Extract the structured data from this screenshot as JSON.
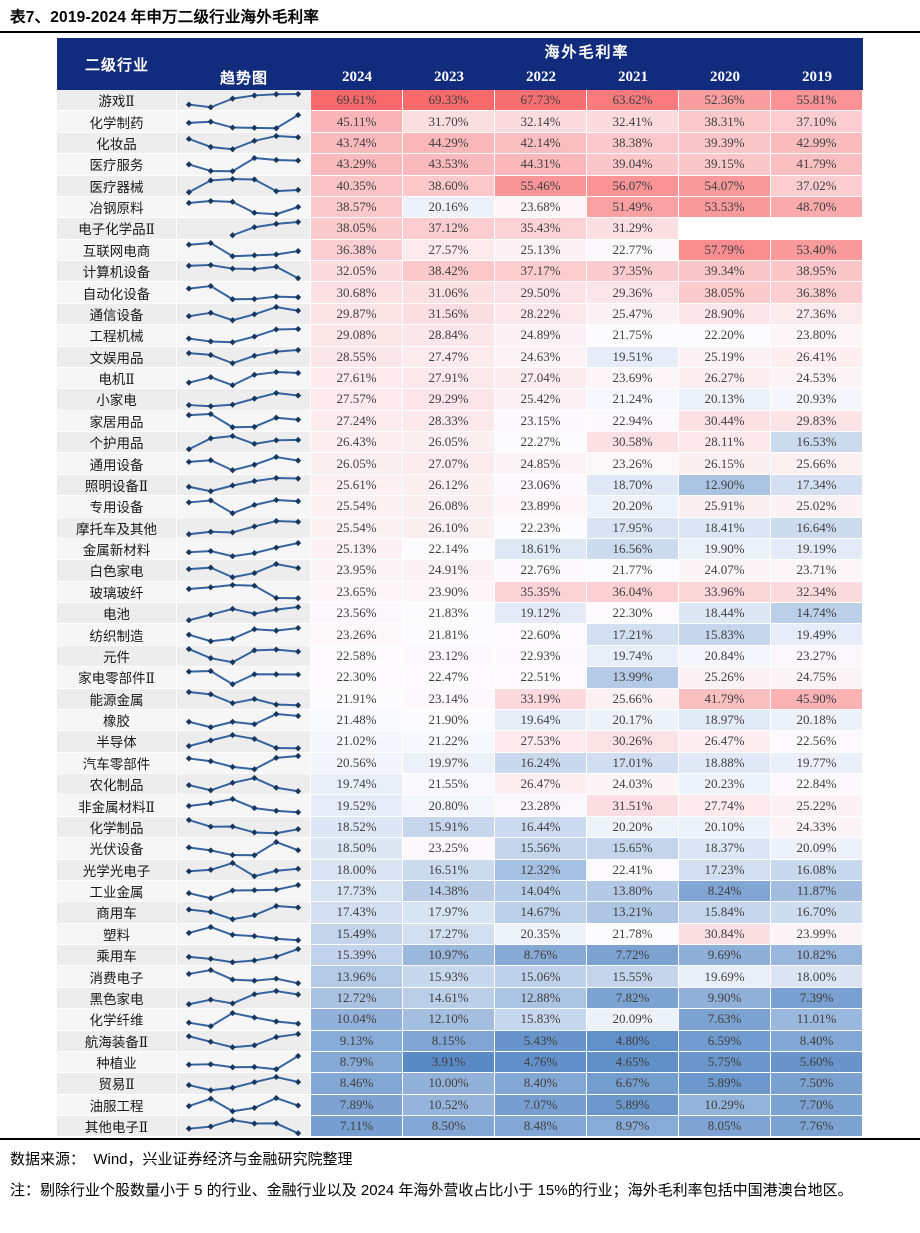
{
  "title": "表7、2019-2024 年申万二级行业海外毛利率",
  "table": {
    "col1_header": "二级行业",
    "col2_header": "趋势图",
    "group_header": "海外毛利率",
    "years": [
      "2024",
      "2023",
      "2022",
      "2021",
      "2020",
      "2019"
    ],
    "value_format": "percent_2dp",
    "rows": [
      {
        "name": "游戏Ⅱ",
        "values": [
          69.61,
          69.33,
          67.73,
          63.62,
          52.36,
          55.81
        ]
      },
      {
        "name": "化学制药",
        "values": [
          45.11,
          31.7,
          32.14,
          32.41,
          38.31,
          37.1
        ]
      },
      {
        "name": "化妆品",
        "values": [
          43.74,
          44.29,
          42.14,
          38.38,
          39.39,
          42.99
        ]
      },
      {
        "name": "医疗服务",
        "values": [
          43.29,
          43.53,
          44.31,
          39.04,
          39.15,
          41.79
        ]
      },
      {
        "name": "医疗器械",
        "values": [
          40.35,
          38.6,
          55.46,
          56.07,
          54.07,
          37.02
        ]
      },
      {
        "name": "冶钢原料",
        "values": [
          38.57,
          20.16,
          23.68,
          51.49,
          53.53,
          48.7
        ]
      },
      {
        "name": "电子化学品Ⅱ",
        "values": [
          38.05,
          37.12,
          35.43,
          31.29,
          null,
          null
        ]
      },
      {
        "name": "互联网电商",
        "values": [
          36.38,
          27.57,
          25.13,
          22.77,
          57.79,
          53.4
        ]
      },
      {
        "name": "计算机设备",
        "values": [
          32.05,
          38.42,
          37.17,
          37.35,
          39.34,
          38.95
        ]
      },
      {
        "name": "自动化设备",
        "values": [
          30.68,
          31.06,
          29.5,
          29.36,
          38.05,
          36.38
        ]
      },
      {
        "name": "通信设备",
        "values": [
          29.87,
          31.56,
          28.22,
          25.47,
          28.9,
          27.36
        ]
      },
      {
        "name": "工程机械",
        "values": [
          29.08,
          28.84,
          24.89,
          21.75,
          22.2,
          23.8
        ]
      },
      {
        "name": "文娱用品",
        "values": [
          28.55,
          27.47,
          24.63,
          19.51,
          25.19,
          26.41
        ]
      },
      {
        "name": "电机Ⅱ",
        "values": [
          27.61,
          27.91,
          27.04,
          23.69,
          26.27,
          24.53
        ]
      },
      {
        "name": "小家电",
        "values": [
          27.57,
          29.29,
          25.42,
          21.24,
          20.13,
          20.93
        ]
      },
      {
        "name": "家居用品",
        "values": [
          27.24,
          28.33,
          23.15,
          22.94,
          30.44,
          29.83
        ]
      },
      {
        "name": "个护用品",
        "values": [
          26.43,
          26.05,
          22.27,
          30.58,
          28.11,
          16.53
        ]
      },
      {
        "name": "通用设备",
        "values": [
          26.05,
          27.07,
          24.85,
          23.26,
          26.15,
          25.66
        ]
      },
      {
        "name": "照明设备Ⅱ",
        "values": [
          25.61,
          26.12,
          23.06,
          18.7,
          12.9,
          17.34
        ]
      },
      {
        "name": "专用设备",
        "values": [
          25.54,
          26.08,
          23.89,
          20.2,
          25.91,
          25.02
        ]
      },
      {
        "name": "摩托车及其他",
        "values": [
          25.54,
          26.1,
          22.23,
          17.95,
          18.41,
          16.64
        ]
      },
      {
        "name": "金属新材料",
        "values": [
          25.13,
          22.14,
          18.61,
          16.56,
          19.9,
          19.19
        ]
      },
      {
        "name": "白色家电",
        "values": [
          23.95,
          24.91,
          22.76,
          21.77,
          24.07,
          23.71
        ]
      },
      {
        "name": "玻璃玻纤",
        "values": [
          23.65,
          23.9,
          35.35,
          36.04,
          33.96,
          32.34
        ]
      },
      {
        "name": "电池",
        "values": [
          23.56,
          21.83,
          19.12,
          22.3,
          18.44,
          14.74
        ]
      },
      {
        "name": "纺织制造",
        "values": [
          23.26,
          21.81,
          22.6,
          17.21,
          15.83,
          19.49
        ]
      },
      {
        "name": "元件",
        "values": [
          22.58,
          23.12,
          22.93,
          19.74,
          20.84,
          23.27
        ]
      },
      {
        "name": "家电零部件Ⅱ",
        "values": [
          22.3,
          22.47,
          22.51,
          13.99,
          25.26,
          24.75
        ]
      },
      {
        "name": "能源金属",
        "values": [
          21.91,
          23.14,
          33.19,
          25.66,
          41.79,
          45.9
        ]
      },
      {
        "name": "橡胶",
        "values": [
          21.48,
          21.9,
          19.64,
          20.17,
          18.97,
          20.18
        ]
      },
      {
        "name": "半导体",
        "values": [
          21.02,
          21.22,
          27.53,
          30.26,
          26.47,
          22.56
        ]
      },
      {
        "name": "汽车零部件",
        "values": [
          20.56,
          19.97,
          16.24,
          17.01,
          18.88,
          19.77
        ]
      },
      {
        "name": "农化制品",
        "values": [
          19.74,
          21.55,
          26.47,
          24.03,
          20.23,
          22.84
        ]
      },
      {
        "name": "非金属材料Ⅱ",
        "values": [
          19.52,
          20.8,
          23.28,
          31.51,
          27.74,
          25.22
        ]
      },
      {
        "name": "化学制品",
        "values": [
          18.52,
          15.91,
          16.44,
          20.2,
          20.1,
          24.33
        ]
      },
      {
        "name": "光伏设备",
        "values": [
          18.5,
          23.25,
          15.56,
          15.65,
          18.37,
          20.09
        ]
      },
      {
        "name": "光学光电子",
        "values": [
          18.0,
          16.51,
          12.32,
          22.41,
          17.23,
          16.08
        ]
      },
      {
        "name": "工业金属",
        "values": [
          17.73,
          14.38,
          14.04,
          13.8,
          8.24,
          11.87
        ]
      },
      {
        "name": "商用车",
        "values": [
          17.43,
          17.97,
          14.67,
          13.21,
          15.84,
          16.7
        ]
      },
      {
        "name": "塑料",
        "values": [
          15.49,
          17.27,
          20.35,
          21.78,
          30.84,
          23.99
        ]
      },
      {
        "name": "乘用车",
        "values": [
          15.39,
          10.97,
          8.76,
          7.72,
          9.69,
          10.82
        ]
      },
      {
        "name": "消费电子",
        "values": [
          13.96,
          15.93,
          15.06,
          15.55,
          19.69,
          18.0
        ]
      },
      {
        "name": "黑色家电",
        "values": [
          12.72,
          14.61,
          12.88,
          7.82,
          9.9,
          7.39
        ]
      },
      {
        "name": "化学纤维",
        "values": [
          10.04,
          12.1,
          15.83,
          20.09,
          7.63,
          11.01
        ]
      },
      {
        "name": "航海装备Ⅱ",
        "values": [
          9.13,
          8.15,
          5.43,
          4.8,
          6.59,
          8.4
        ]
      },
      {
        "name": "种植业",
        "values": [
          8.79,
          3.91,
          4.76,
          4.65,
          5.75,
          5.6
        ]
      },
      {
        "name": "贸易Ⅱ",
        "values": [
          8.46,
          10.0,
          8.4,
          6.67,
          5.89,
          7.5
        ]
      },
      {
        "name": "油服工程",
        "values": [
          7.89,
          10.52,
          7.07,
          5.89,
          10.29,
          7.7
        ]
      },
      {
        "name": "其他电子Ⅱ",
        "values": [
          7.11,
          8.5,
          8.48,
          8.97,
          8.05,
          7.76
        ]
      }
    ]
  },
  "heatmap": {
    "low_color": "#5A8AC6",
    "mid_color": "#FCFCFF",
    "high_color": "#F8696B",
    "low_value": 3.91,
    "mid_value": 21.8,
    "high_value": 69.61,
    "empty_color": "#FFFFFF"
  },
  "sparkline": {
    "line_color": "#35639F",
    "marker_color": "#17375E",
    "order": "2019_to_2024_left_to_right"
  },
  "colors": {
    "header_bg": "#112B7D",
    "header_text": "#FFFFFF",
    "row_bg_odd": "#EDEDED",
    "row_bg_even": "#F6F6F6",
    "value_text": "#404040",
    "rule": "#000000"
  },
  "footer": {
    "source": "数据来源：  Wind，兴业证券经济与金融研究院整理",
    "note": "注：剔除行业个股数量小于 5 的行业、金融行业以及 2024 年海外营收占比小于 15%的行业；海外毛利率包括中国港澳台地区。"
  }
}
